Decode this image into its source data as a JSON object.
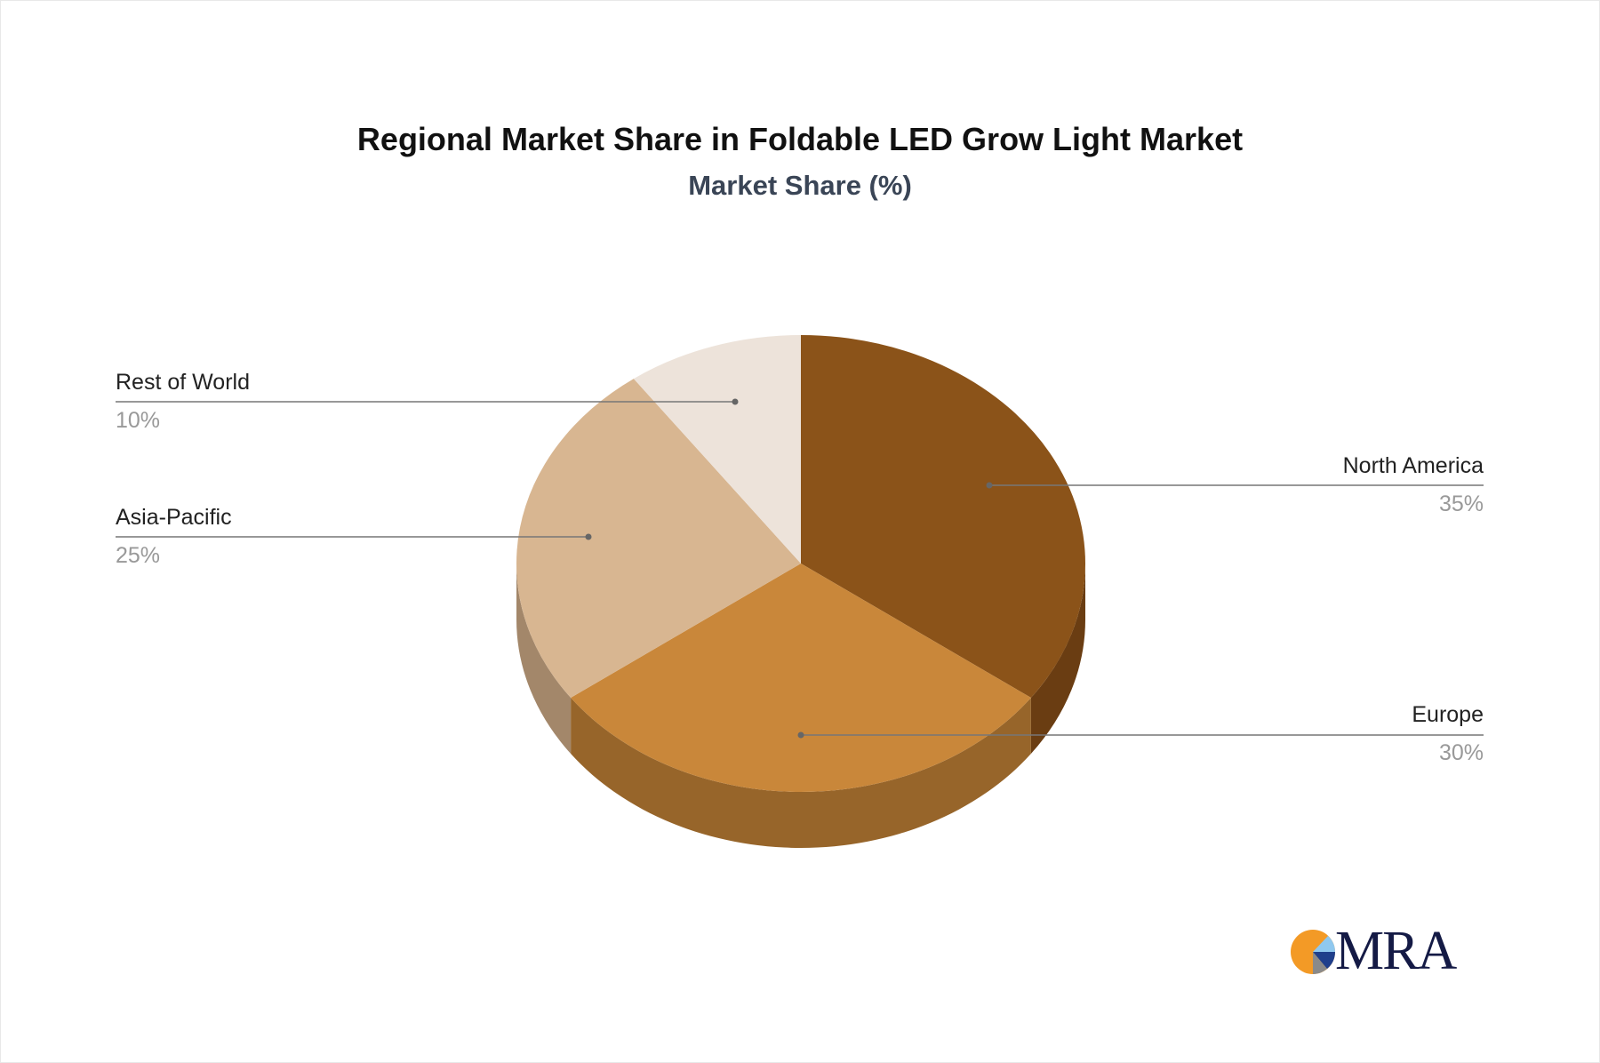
{
  "chart_data": {
    "type": "pie",
    "title": "Regional Market Share in Foldable LED Grow Light Market",
    "subtitle": "Market Share (%)",
    "style": "3d",
    "slices": [
      {
        "label": "North America",
        "value": 35,
        "value_label": "35%",
        "color": "#8b5319",
        "side_color": "#6a3d12"
      },
      {
        "label": "Europe",
        "value": 30,
        "value_label": "30%",
        "color": "#c9873a",
        "side_color": "#97652a"
      },
      {
        "label": "Asia-Pacific",
        "value": 25,
        "value_label": "25%",
        "color": "#d8b691",
        "side_color": "#a3876a"
      },
      {
        "label": "Rest of World",
        "value": 10,
        "value_label": "10%",
        "color": "#ede3da",
        "side_color": "#b8afa6"
      }
    ]
  },
  "logo": {
    "text": "MRA"
  }
}
